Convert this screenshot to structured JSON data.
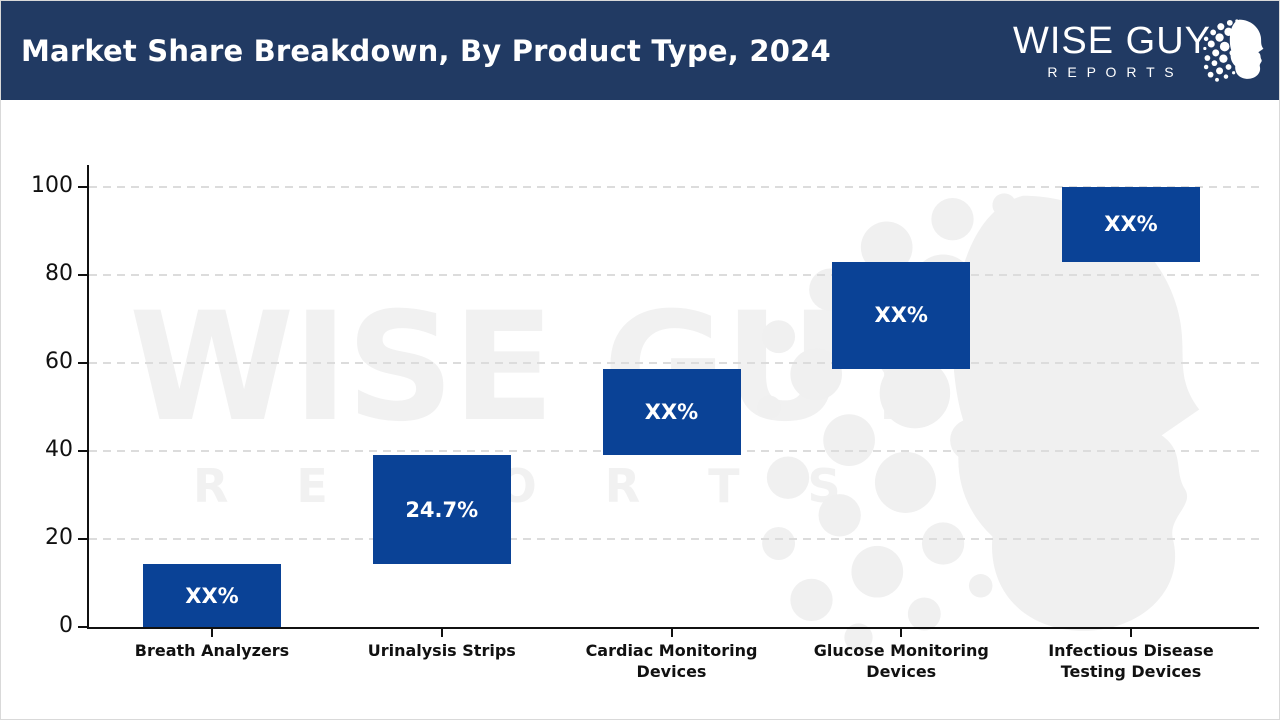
{
  "header": {
    "title": "Market Share Breakdown, By Product Type, 2024",
    "logo": {
      "wordmark": "WISE GUY",
      "subtitle": "R E P O R T S"
    }
  },
  "watermark": {
    "wordmark": "WISE GUY",
    "subtitle": "R E P O R T S"
  },
  "colors": {
    "header_bg": "#213a63",
    "bar": "#0a4296",
    "bar_label": "#ffffff",
    "grid": "#dcdcdc",
    "axis": "#111111",
    "watermark_text": "#f1f1f1",
    "watermark_head": "#f0f0f0"
  },
  "chart_data": {
    "type": "waterfall_bar",
    "title": "Market Share Breakdown, By Product Type, 2024",
    "xlabel": "",
    "ylabel": "",
    "ylim": [
      0,
      105
    ],
    "y_ticks": [
      0,
      20,
      40,
      60,
      80,
      100
    ],
    "grid": "horizontal-dashed",
    "legend": "none",
    "categories": [
      "Breath Analyzers",
      "Urinalysis Strips",
      "Cardiac Monitoring Devices",
      "Glucose Monitoring Devices",
      "Infectious Disease Testing Devices"
    ],
    "segments": [
      {
        "category": "Breath Analyzers",
        "start": 0,
        "end": 14.3,
        "value": 14.3,
        "label": "XX%"
      },
      {
        "category": "Urinalysis Strips",
        "start": 14.3,
        "end": 39.0,
        "value": 24.7,
        "label": "24.7%"
      },
      {
        "category": "Cardiac Monitoring Devices",
        "start": 39.0,
        "end": 58.6,
        "value": 19.6,
        "label": "XX%"
      },
      {
        "category": "Glucose Monitoring Devices",
        "start": 58.6,
        "end": 83.0,
        "value": 24.4,
        "label": "XX%"
      },
      {
        "category": "Infectious Disease Testing Devices",
        "start": 83.0,
        "end": 100.0,
        "value": 17.0,
        "label": "XX%"
      }
    ]
  }
}
